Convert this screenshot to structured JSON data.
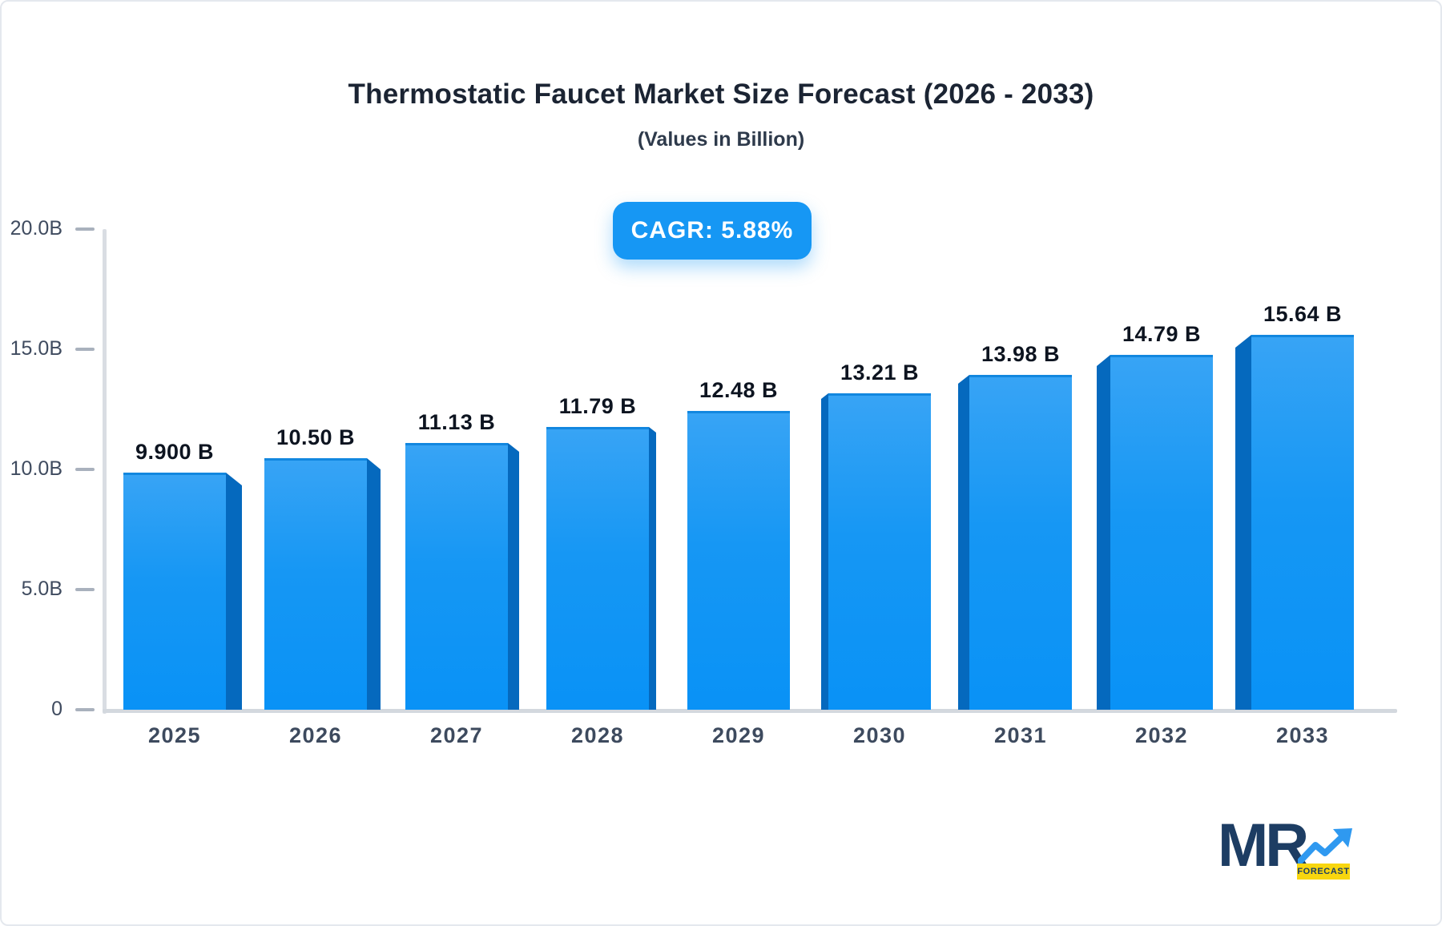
{
  "header": {
    "title": "Thermostatic Faucet Market Size Forecast (2026 - 2033)",
    "subtitle": "(Values in Billion)"
  },
  "badge": {
    "label": "CAGR: 5.88%",
    "color": "#1697f4"
  },
  "chart_data": {
    "type": "bar",
    "title": "Thermostatic Faucet Market Size Forecast (2026 - 2033)",
    "subtitle": "(Values in Billion)",
    "unit": "Billion",
    "cagr": "5.88%",
    "categories": [
      "2025",
      "2026",
      "2027",
      "2028",
      "2029",
      "2030",
      "2031",
      "2032",
      "2033"
    ],
    "values": [
      9.9,
      10.5,
      11.13,
      11.79,
      12.48,
      13.21,
      13.98,
      14.79,
      15.64
    ],
    "value_labels": [
      "9.900 B",
      "10.50 B",
      "11.13 B",
      "11.79 B",
      "12.48 B",
      "13.21 B",
      "13.98 B",
      "14.79 B",
      "15.64 B"
    ],
    "ylim": [
      0,
      20
    ],
    "yticks": [
      {
        "label": "20.0B",
        "value": 20
      },
      {
        "label": "15.0B",
        "value": 15
      },
      {
        "label": "10.0B",
        "value": 10
      },
      {
        "label": "5.0B",
        "value": 5
      },
      {
        "label": "0",
        "value": 0
      }
    ],
    "xlabel": "",
    "ylabel": "",
    "grid": false,
    "legend": "none",
    "bar_color_top": "#38a4f5",
    "bar_color_mid": "#1697f4",
    "bar_color_bottom": "#0992f6",
    "bar_side_color": "#0569be",
    "bar_edge_color": "#1287df"
  },
  "logo": {
    "mr": "MR",
    "forecast": "FORECAST",
    "navy": "#1d3d63",
    "yellow": "#f8d60f",
    "arrow_blue": "#2f99f0",
    "arrow_icon": "trend-up-arrow"
  }
}
